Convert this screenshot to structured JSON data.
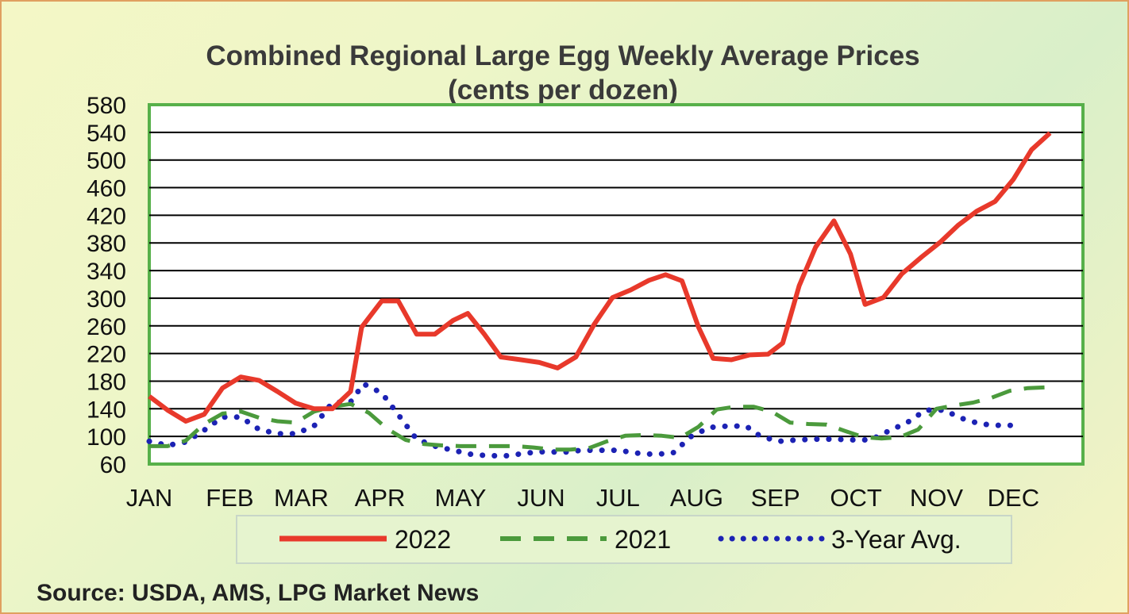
{
  "chart_data": {
    "type": "line",
    "title": "Combined Regional Large Egg Weekly Average Prices",
    "subtitle": "(cents per dozen)",
    "source": "Source: USDA, AMS, LPG  Market News",
    "ylim": [
      60,
      580
    ],
    "yticks": [
      60,
      100,
      140,
      180,
      220,
      260,
      300,
      340,
      380,
      420,
      460,
      500,
      540,
      580
    ],
    "xlim": [
      1,
      52
    ],
    "months": [
      {
        "label": "JAN",
        "week": 1
      },
      {
        "label": "FEB",
        "week": 5.4
      },
      {
        "label": "MAR",
        "week": 9.3
      },
      {
        "label": "APR",
        "week": 13.6
      },
      {
        "label": "MAY",
        "week": 18
      },
      {
        "label": "JUN",
        "week": 22.4
      },
      {
        "label": "JUL",
        "week": 26.6
      },
      {
        "label": "AUG",
        "week": 30.9
      },
      {
        "label": "SEP",
        "week": 35.2
      },
      {
        "label": "OCT",
        "week": 39.6
      },
      {
        "label": "NOV",
        "week": 44
      },
      {
        "label": "DEC",
        "week": 48.2
      }
    ],
    "grid": true,
    "legend_position": "bottom",
    "series": [
      {
        "name": "2022",
        "color": "#e8392b",
        "style": "solid",
        "points": [
          [
            1,
            158
          ],
          [
            2,
            138
          ],
          [
            3,
            122
          ],
          [
            4,
            132
          ],
          [
            5,
            170
          ],
          [
            6,
            186
          ],
          [
            7,
            181
          ],
          [
            8,
            165
          ],
          [
            9,
            148
          ],
          [
            10,
            140
          ],
          [
            11,
            140
          ],
          [
            12,
            165
          ],
          [
            12.6,
            258
          ],
          [
            13.7,
            296
          ],
          [
            14.6,
            296
          ],
          [
            15.6,
            248
          ],
          [
            16.6,
            248
          ],
          [
            17.6,
            268
          ],
          [
            18.4,
            278
          ],
          [
            19.3,
            248
          ],
          [
            20.2,
            215
          ],
          [
            21.3,
            211
          ],
          [
            22.3,
            207
          ],
          [
            23.3,
            199
          ],
          [
            24.3,
            215
          ],
          [
            25.3,
            262
          ],
          [
            26.3,
            301
          ],
          [
            27.3,
            312
          ],
          [
            28.3,
            326
          ],
          [
            29.2,
            334
          ],
          [
            30.1,
            325
          ],
          [
            31,
            258
          ],
          [
            31.8,
            213
          ],
          [
            32.8,
            211
          ],
          [
            33.8,
            218
          ],
          [
            34.8,
            219
          ],
          [
            35.6,
            235
          ],
          [
            36.5,
            318
          ],
          [
            37.4,
            374
          ],
          [
            38.4,
            412
          ],
          [
            39.3,
            364
          ],
          [
            40.1,
            291
          ],
          [
            41.1,
            301
          ],
          [
            42.1,
            335
          ],
          [
            43.2,
            360
          ],
          [
            44.2,
            381
          ],
          [
            45.2,
            406
          ],
          [
            46.2,
            426
          ],
          [
            47.2,
            440
          ],
          [
            48.2,
            472
          ],
          [
            49.2,
            515
          ],
          [
            50.2,
            539
          ]
        ]
      },
      {
        "name": "2021",
        "color": "#4b9a3c",
        "style": "dashed",
        "points": [
          [
            1,
            86
          ],
          [
            2,
            86
          ],
          [
            3,
            94
          ],
          [
            4,
            118
          ],
          [
            5,
            133
          ],
          [
            6,
            136
          ],
          [
            7,
            127
          ],
          [
            8,
            122
          ],
          [
            9,
            120
          ],
          [
            10,
            136
          ],
          [
            11,
            143
          ],
          [
            12,
            147
          ],
          [
            13,
            134
          ],
          [
            14,
            111
          ],
          [
            15,
            95
          ],
          [
            16,
            89
          ],
          [
            17,
            87
          ],
          [
            18,
            86
          ],
          [
            19,
            86
          ],
          [
            20,
            86
          ],
          [
            21,
            86
          ],
          [
            22,
            84
          ],
          [
            23,
            81
          ],
          [
            24,
            81
          ],
          [
            25,
            83
          ],
          [
            26,
            93
          ],
          [
            27,
            101
          ],
          [
            28,
            102
          ],
          [
            29,
            101
          ],
          [
            30,
            98
          ],
          [
            31,
            114
          ],
          [
            32,
            139
          ],
          [
            33,
            143
          ],
          [
            34,
            143
          ],
          [
            35,
            136
          ],
          [
            36,
            120
          ],
          [
            37,
            118
          ],
          [
            38,
            117
          ],
          [
            39,
            108
          ],
          [
            40,
            99
          ],
          [
            41,
            97
          ],
          [
            42,
            99
          ],
          [
            43,
            110
          ],
          [
            44,
            140
          ],
          [
            45,
            145
          ],
          [
            46,
            149
          ],
          [
            47,
            156
          ],
          [
            48,
            166
          ],
          [
            49,
            170
          ],
          [
            50,
            171
          ]
        ]
      },
      {
        "name": "3-Year Avg.",
        "color": "#1c22b4",
        "style": "dotted",
        "points": [
          [
            1,
            93
          ],
          [
            2,
            87
          ],
          [
            3,
            92
          ],
          [
            4,
            109
          ],
          [
            5,
            128
          ],
          [
            6,
            128
          ],
          [
            7,
            110
          ],
          [
            8,
            104
          ],
          [
            9,
            104
          ],
          [
            10,
            115
          ],
          [
            11,
            149
          ],
          [
            12,
            150
          ],
          [
            12.7,
            176
          ],
          [
            13.7,
            163
          ],
          [
            14.7,
            128
          ],
          [
            15.6,
            96
          ],
          [
            16.6,
            86
          ],
          [
            17.6,
            80
          ],
          [
            18.6,
            74
          ],
          [
            19.6,
            72
          ],
          [
            20.6,
            72
          ],
          [
            21.6,
            76
          ],
          [
            22.6,
            78
          ],
          [
            23.6,
            77
          ],
          [
            24.6,
            80
          ],
          [
            25.6,
            80
          ],
          [
            26.6,
            80
          ],
          [
            27.6,
            76
          ],
          [
            28.6,
            74
          ],
          [
            29.6,
            76
          ],
          [
            30.6,
            100
          ],
          [
            31.6,
            113
          ],
          [
            32.6,
            115
          ],
          [
            33.6,
            115
          ],
          [
            34.4,
            100
          ],
          [
            35.4,
            93
          ],
          [
            36.4,
            95
          ],
          [
            37.4,
            96
          ],
          [
            38.4,
            96
          ],
          [
            39.4,
            95
          ],
          [
            40.4,
            95
          ],
          [
            41.4,
            108
          ],
          [
            42.4,
            120
          ],
          [
            43.4,
            138
          ],
          [
            44.4,
            138
          ],
          [
            45.4,
            126
          ],
          [
            46.4,
            118
          ],
          [
            47.4,
            116
          ],
          [
            48.2,
            116
          ]
        ]
      }
    ]
  }
}
